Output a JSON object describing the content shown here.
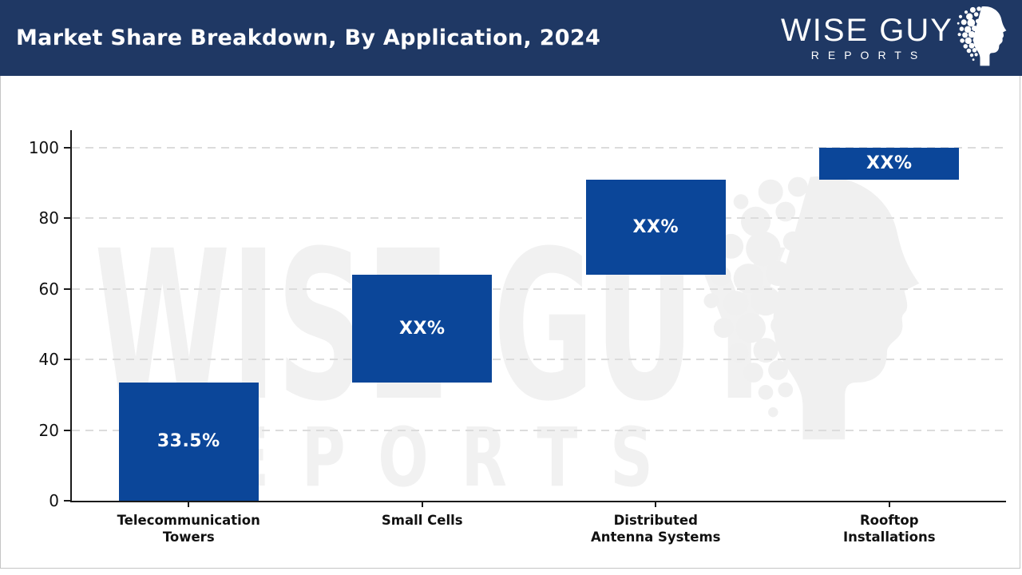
{
  "header": {
    "title": "Market Share Breakdown, By Application, 2024",
    "logo": {
      "line1": "WISE GUY",
      "line2": "REPORTS"
    }
  },
  "watermark": {
    "line1": "WISE GUY",
    "line2": "REPORTS"
  },
  "colors": {
    "header_bg": "#1f3864",
    "bar_blue": "#0b4699",
    "axis": "#1a1a1a",
    "grid": "#dcdcdc",
    "watermark_gray": "#f1f1f1",
    "frame_border": "#c5c5c5"
  },
  "chart_data": {
    "type": "bar",
    "subtype": "stacked-waterfall-percent",
    "title": "Market Share Breakdown, By Application, 2024",
    "categories": [
      "Telecommunication Towers",
      "Small Cells",
      "Distributed Antenna Systems",
      "Rooftop Installations"
    ],
    "category_lines": [
      [
        "Telecommunication",
        "Towers"
      ],
      [
        "Small Cells"
      ],
      [
        "Distributed",
        "Antenna Systems"
      ],
      [
        "Rooftop",
        "Installations"
      ]
    ],
    "segments": [
      {
        "category": "Telecommunication Towers",
        "start": 0,
        "end": 33.5,
        "label": "33.5%"
      },
      {
        "category": "Small Cells",
        "start": 33.5,
        "end": 64,
        "label": "XX%"
      },
      {
        "category": "Distributed Antenna Systems",
        "start": 64,
        "end": 91,
        "label": "XX%"
      },
      {
        "category": "Rooftop Installations",
        "start": 91,
        "end": 100,
        "label": "XX%"
      }
    ],
    "yticks": [
      0,
      20,
      40,
      60,
      80,
      100
    ],
    "ylim": [
      0,
      105
    ],
    "xlabel": "",
    "ylabel": "",
    "grid": "horizontal-dashed",
    "legend": "none",
    "bar_color": "#0b4699",
    "bar_label_color": "#ffffff"
  }
}
